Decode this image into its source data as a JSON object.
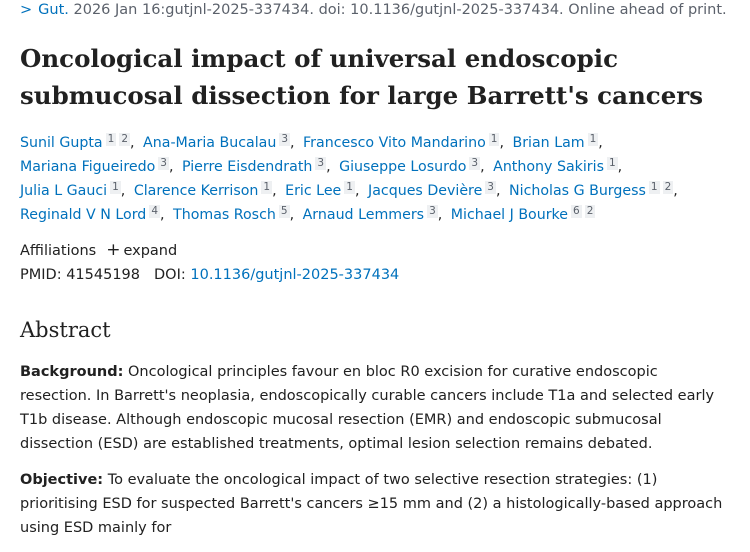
{
  "citation": {
    "journal": "Gut.",
    "details": "2026 Jan 16:gutjnl-2025-337434. doi: 10.1136/gutjnl-2025-337434. Online ahead of print."
  },
  "title": "Oncological impact of universal endoscopic submucosal dissection for large Barrett's cancers",
  "authors": [
    {
      "name": "Sunil Gupta",
      "affiliations": [
        "1",
        "2"
      ]
    },
    {
      "name": "Ana-Maria Bucalau",
      "affiliations": [
        "3"
      ]
    },
    {
      "name": "Francesco Vito Mandarino",
      "affiliations": [
        "1"
      ]
    },
    {
      "name": "Brian Lam",
      "affiliations": [
        "1"
      ]
    },
    {
      "name": "Mariana Figueiredo",
      "affiliations": [
        "3"
      ]
    },
    {
      "name": "Pierre Eisdendrath",
      "affiliations": [
        "3"
      ]
    },
    {
      "name": "Giuseppe Losurdo",
      "affiliations": [
        "3"
      ]
    },
    {
      "name": "Anthony Sakiris",
      "affiliations": [
        "1"
      ]
    },
    {
      "name": "Julia L Gauci",
      "affiliations": [
        "1"
      ]
    },
    {
      "name": "Clarence Kerrison",
      "affiliations": [
        "1"
      ]
    },
    {
      "name": "Eric Lee",
      "affiliations": [
        "1"
      ]
    },
    {
      "name": "Jacques Devière",
      "affiliations": [
        "3"
      ]
    },
    {
      "name": "Nicholas G Burgess",
      "affiliations": [
        "1",
        "2"
      ]
    },
    {
      "name": "Reginald V N Lord",
      "affiliations": [
        "4"
      ]
    },
    {
      "name": "Thomas Rosch",
      "affiliations": [
        "5"
      ]
    },
    {
      "name": "Arnaud Lemmers",
      "affiliations": [
        "3"
      ]
    },
    {
      "name": "Michael J Bourke",
      "affiliations": [
        "6",
        "2"
      ]
    }
  ],
  "affiliations_label": "Affiliations",
  "expand_label": "expand",
  "pmid_label": "PMID:",
  "pmid": "41545198",
  "doi_label": "DOI:",
  "doi": "10.1136/gutjnl-2025-337434",
  "abstract": {
    "heading": "Abstract",
    "sections": [
      {
        "label": "Background:",
        "text": "Oncological principles favour en bloc R0 excision for curative endoscopic resection. In Barrett's neoplasia, endoscopically curable cancers include T1a and selected early T1b disease. Although endoscopic mucosal resection (EMR) and endoscopic submucosal dissection (ESD) are established treatments, optimal lesion selection remains debated."
      },
      {
        "label": "Objective:",
        "text": "To evaluate the oncological impact of two selective resection strategies: (1) prioritising ESD for suspected Barrett's cancers ≥15 mm and (2) a histologically-based approach using ESD mainly for"
      }
    ]
  }
}
